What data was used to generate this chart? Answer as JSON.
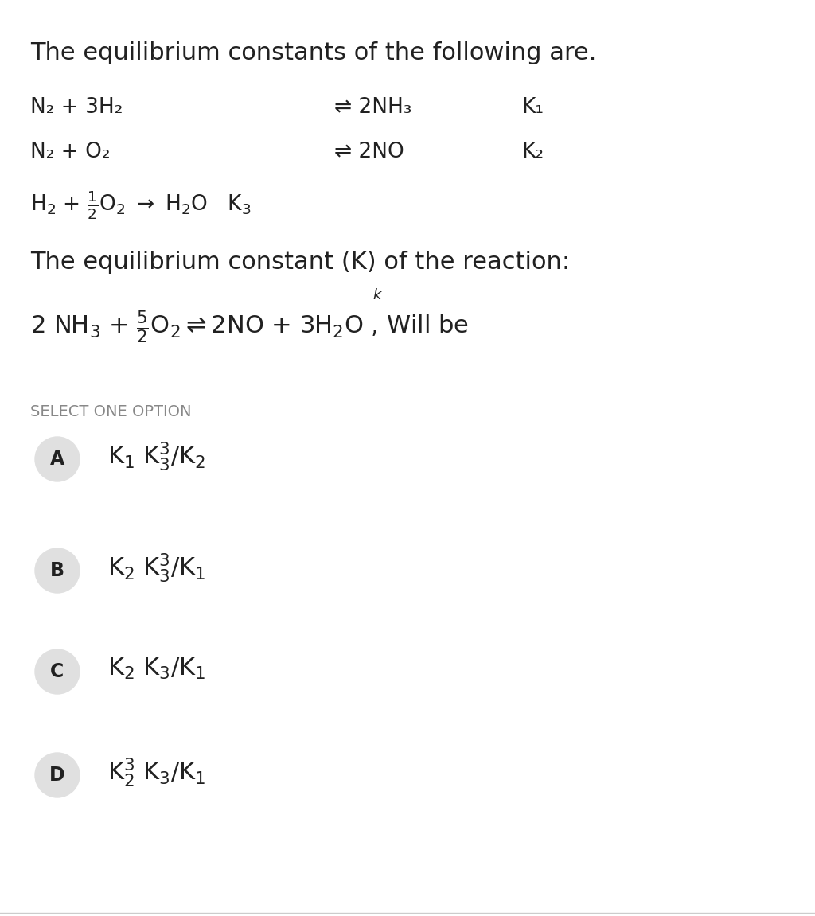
{
  "bg_color": "#f5f5f5",
  "title": "The equilibrium constants of the following are.",
  "reaction1_left": "N₂ + 3H₂",
  "reaction1_arrow": "⇌ 2NH₃",
  "reaction1_k": "K₁",
  "reaction2_left": "N₂ + O₂",
  "reaction2_arrow": "⇌ 2NO",
  "reaction2_k": "K₂",
  "reaction3_left": "H₂ + ½O₂ → H₂O",
  "reaction3_k": "K₃",
  "eq_const_text": "The equilibrium constant (K) of the reaction:",
  "main_reaction_prefix": "2 NH₃ +",
  "main_reaction_frac_num": "5",
  "main_reaction_frac_den": "2",
  "main_reaction_suffix": "O₂⇌2NO + 3H₂O , Will be",
  "main_reaction_k_label": "k",
  "select_text": "SELECT ONE OPTION",
  "option_A_label": "A",
  "option_A_text": "K₁ K₃³/K₂",
  "option_B_label": "B",
  "option_B_text": "K₂ K₃³/K₁",
  "option_C_label": "C",
  "option_C_text": "K₂ K₃/K₁",
  "option_D_label": "D",
  "option_D_text": "K₂³ K₃/K₁",
  "circle_color": "#e0e0e0",
  "text_color": "#212121",
  "label_color": "#555555"
}
